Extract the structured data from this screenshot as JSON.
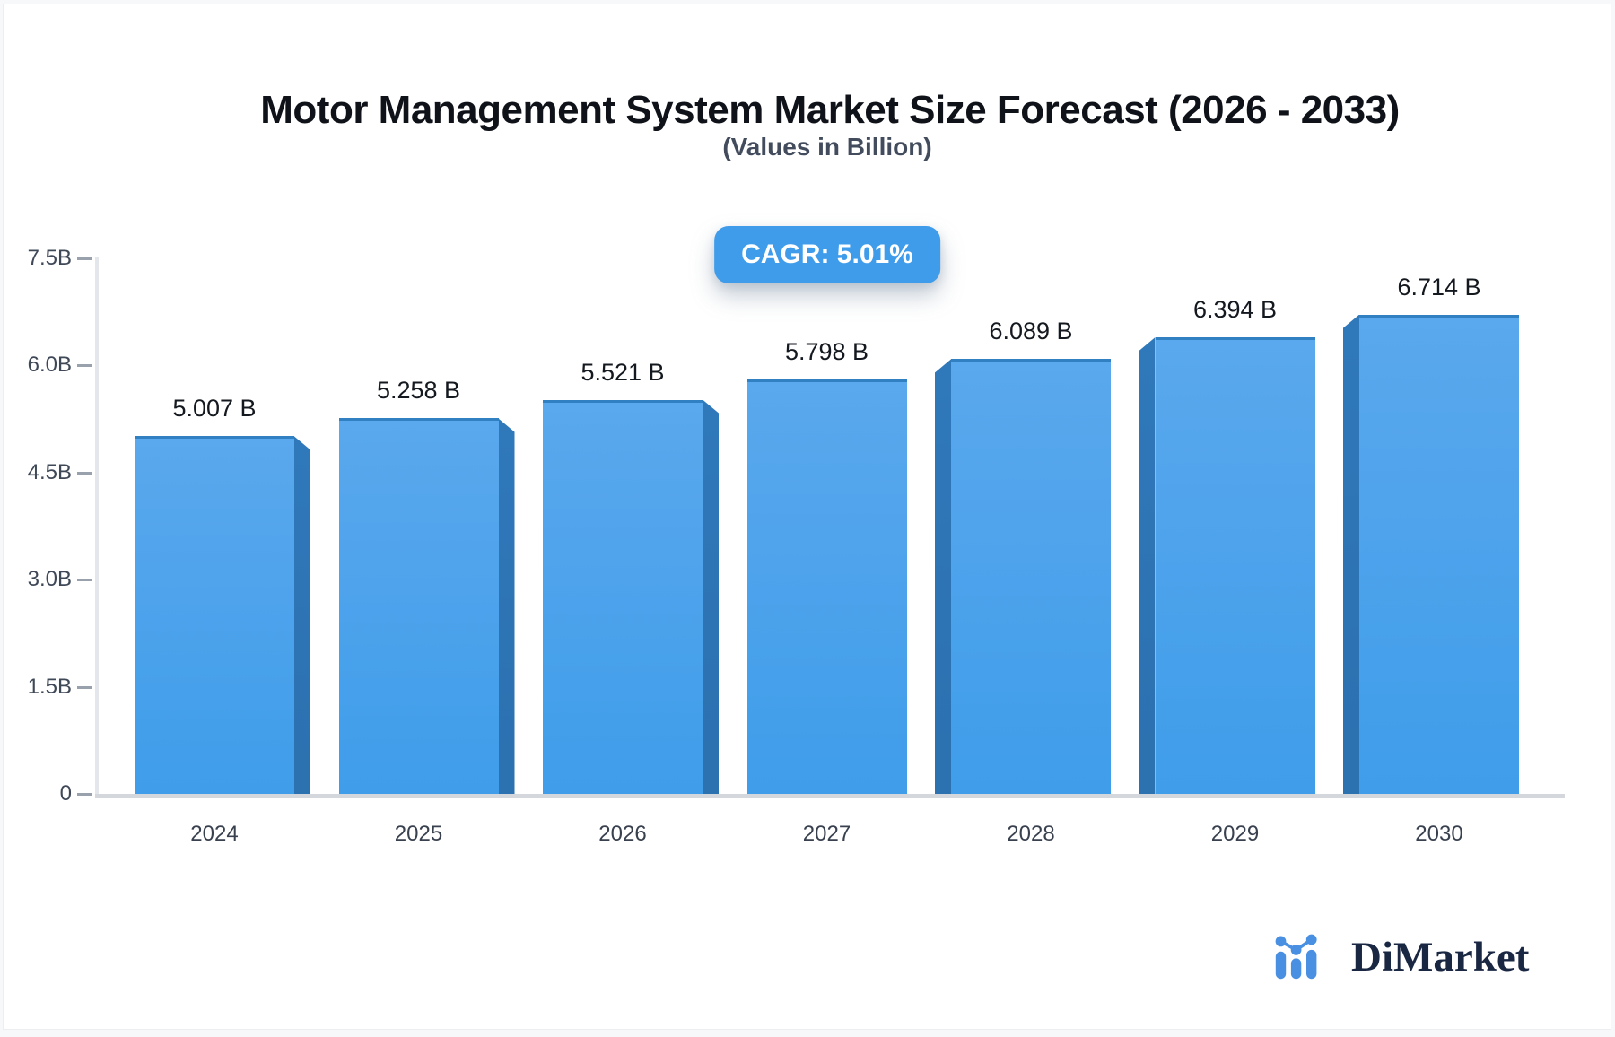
{
  "page": {
    "background": "#f7f8fa",
    "card_background": "#ffffff"
  },
  "header": {
    "title": "Motor Management System Market Size Forecast (2026 - 2033)",
    "subtitle": "(Values in Billion)"
  },
  "cagr": {
    "label": "CAGR: 5.01%",
    "background": "#3e9ceb",
    "text_color": "#ffffff"
  },
  "chart_data": {
    "type": "bar",
    "title": "Motor Management System Market Size Forecast (2026 - 2033)",
    "subtitle": "(Values in Billion)",
    "annotation": "CAGR: 5.01%",
    "categories": [
      "2024",
      "2025",
      "2026",
      "2027",
      "2028",
      "2029",
      "2030"
    ],
    "values": [
      5.007,
      5.258,
      5.521,
      5.798,
      6.089,
      6.394,
      6.714
    ],
    "value_labels": [
      "5.007 B",
      "5.258 B",
      "5.521 B",
      "5.798 B",
      "6.089 B",
      "6.394 B",
      "6.714 B"
    ],
    "xlabel": "",
    "ylabel": "",
    "ylim": [
      0,
      7.5
    ],
    "yticks": [
      {
        "value": 7.5,
        "label": "7.5B"
      },
      {
        "value": 6.0,
        "label": "6.0B"
      },
      {
        "value": 4.5,
        "label": "4.5B"
      },
      {
        "value": 3.0,
        "label": "3.0B"
      },
      {
        "value": 1.5,
        "label": "1.5B"
      },
      {
        "value": 0,
        "label": "0"
      }
    ],
    "grid": false,
    "legend": "none",
    "bar_colors": {
      "face_top": "#5aa8ed",
      "face_bottom": "#3f9dea",
      "side_3d": "#2e75b6",
      "top_edge": "#3180c2"
    }
  },
  "brand": {
    "name": "DiMarket",
    "icon": "bar-line-chart-icon",
    "icon_color": "#4a90e2",
    "text_color": "#1a2742"
  }
}
